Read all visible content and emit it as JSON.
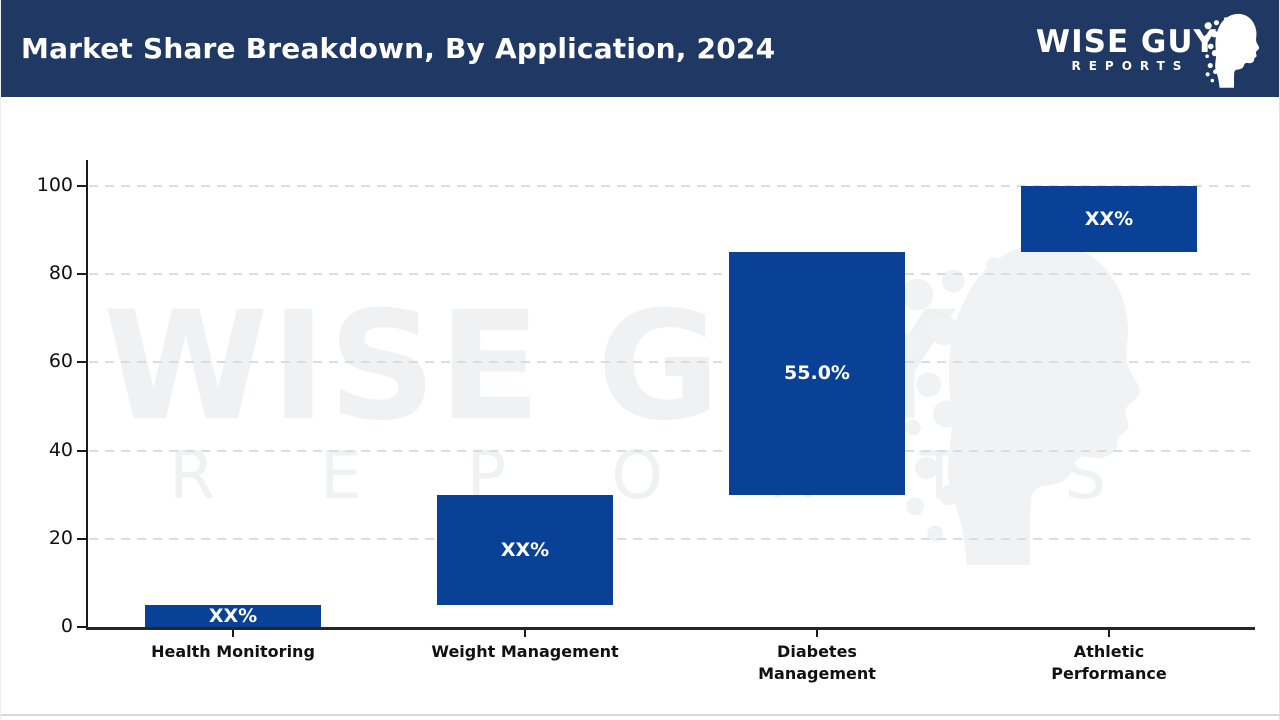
{
  "header": {
    "title": "Market Share Breakdown, By Application, 2024",
    "logo": {
      "line1": "WISE GUY",
      "line2": "REPORTS"
    }
  },
  "watermark": {
    "line1": "WISE GUY",
    "line2": "R E P O R T S"
  },
  "chart_data": {
    "type": "bar",
    "subtype": "floating-range-waterfall",
    "title": "Market Share Breakdown, By Application, 2024",
    "categories": [
      "Health Monitoring",
      "Weight Management",
      "Diabetes Management",
      "Athletic Performance"
    ],
    "category_label_lines": [
      [
        "Health Monitoring"
      ],
      [
        "Weight Management"
      ],
      [
        "Diabetes",
        "Management"
      ],
      [
        "Athletic",
        "Performance"
      ]
    ],
    "series": [
      {
        "name": "Market Share (%)",
        "segments": [
          {
            "category": "Health Monitoring",
            "start": 0,
            "end": 5,
            "label": "XX%"
          },
          {
            "category": "Weight Management",
            "start": 5,
            "end": 30,
            "label": "XX%"
          },
          {
            "category": "Diabetes Management",
            "start": 30,
            "end": 85,
            "label": "55.0%"
          },
          {
            "category": "Athletic Performance",
            "start": 85,
            "end": 100,
            "label": "XX%"
          }
        ]
      }
    ],
    "xlabel": "",
    "ylabel": "",
    "ylim": [
      0,
      100
    ],
    "yticks": [
      "0",
      "20",
      "40",
      "60",
      "80",
      "100"
    ],
    "grid": "horizontal-dashed",
    "legend": "none",
    "bar_color": "#084196",
    "bar_label_color": "#ffffff"
  },
  "colors": {
    "header_bg": "#203864",
    "bar": "#084196",
    "grid": "#dcdcdc",
    "axis": "#1a1a1a",
    "watermark": "#f0f1f3"
  }
}
